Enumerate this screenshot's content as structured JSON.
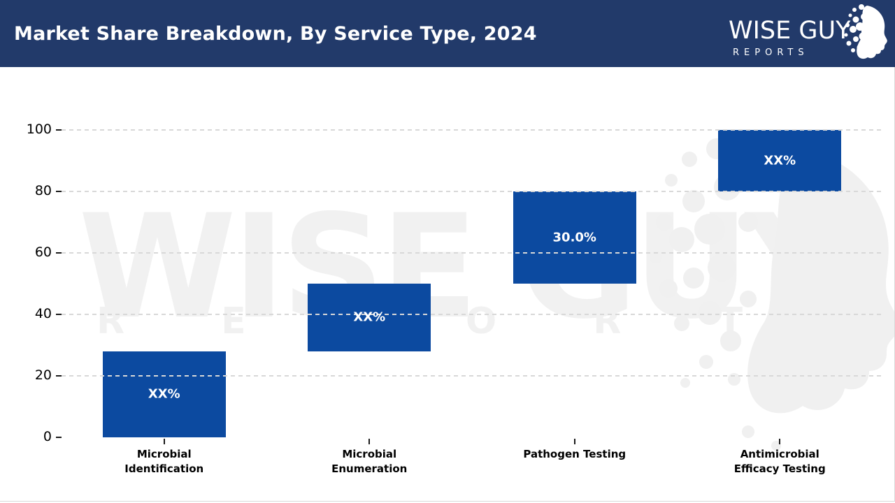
{
  "header": {
    "title": "Market Share Breakdown, By Service Type, 2024",
    "logo": {
      "line1": "WISE GUY",
      "line2": "R E P O R T S"
    },
    "background_color": "#223a6a"
  },
  "watermark": {
    "line1": "WISE GUY",
    "line2": "R E P O R T S",
    "color": "#f1f1f1"
  },
  "chart_data": {
    "type": "bar",
    "subtype": "waterfall",
    "title": "Market Share Breakdown, By Service Type, 2024",
    "categories": [
      [
        "Microbial",
        "Identification"
      ],
      [
        "Microbial",
        "Enumeration"
      ],
      [
        "Pathogen Testing"
      ],
      [
        "Antimicrobial",
        "Efficacy Testing"
      ]
    ],
    "segments": [
      {
        "from": 0,
        "to": 28,
        "label": "XX%"
      },
      {
        "from": 28,
        "to": 50,
        "label": "XX%"
      },
      {
        "from": 50,
        "to": 80,
        "label": "30.0%"
      },
      {
        "from": 80,
        "to": 100,
        "label": "XX%"
      }
    ],
    "ylim": [
      0,
      100
    ],
    "yticks": [
      0,
      20,
      40,
      60,
      80,
      100
    ],
    "xlabel": "",
    "ylabel": "",
    "grid": "horizontal-dashed-over-bars",
    "legend": "none",
    "bar_color": "#0c4aa0",
    "bar_label_color": "#ffffff",
    "gridline_color": "#d8d8d8",
    "axis_color": "#1a1a1a"
  }
}
